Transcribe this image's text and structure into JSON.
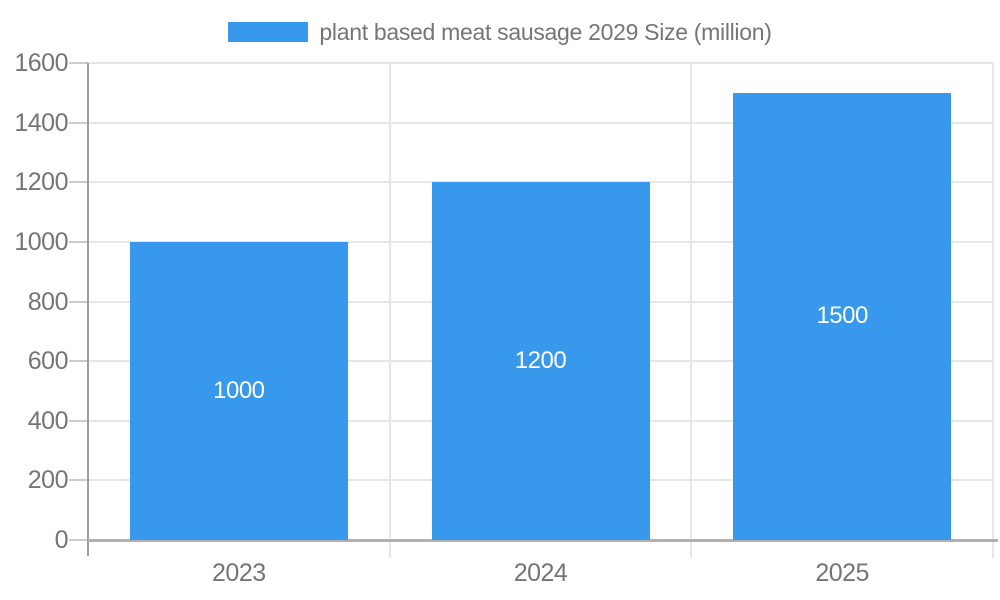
{
  "legend": {
    "label": "plant based meat sausage 2029 Size (million)"
  },
  "chart_data": {
    "type": "bar",
    "title": "",
    "categories": [
      "2023",
      "2024",
      "2025"
    ],
    "values": [
      1000,
      1200,
      1500
    ],
    "data_labels": [
      "1000",
      "1200",
      "1500"
    ],
    "series_name": "plant based meat sausage 2029 Size (million)",
    "xlabel": "",
    "ylabel": "",
    "ylim": [
      0,
      1600
    ],
    "ytick_step": 200,
    "ytick_labels": [
      "0",
      "200",
      "400",
      "600",
      "800",
      "1000",
      "1200",
      "1400",
      "1600"
    ],
    "grid": true,
    "legend_position": "top-center",
    "colors": {
      "bar": "#3898EC",
      "data_label": "#FFFFFF",
      "axis_text": "#757575",
      "gridline": "#E6E6E6",
      "y_axis_line": "#9E9E9E",
      "x_axis_line": "#B0B0B0",
      "tick": "#CCCCCC"
    }
  }
}
